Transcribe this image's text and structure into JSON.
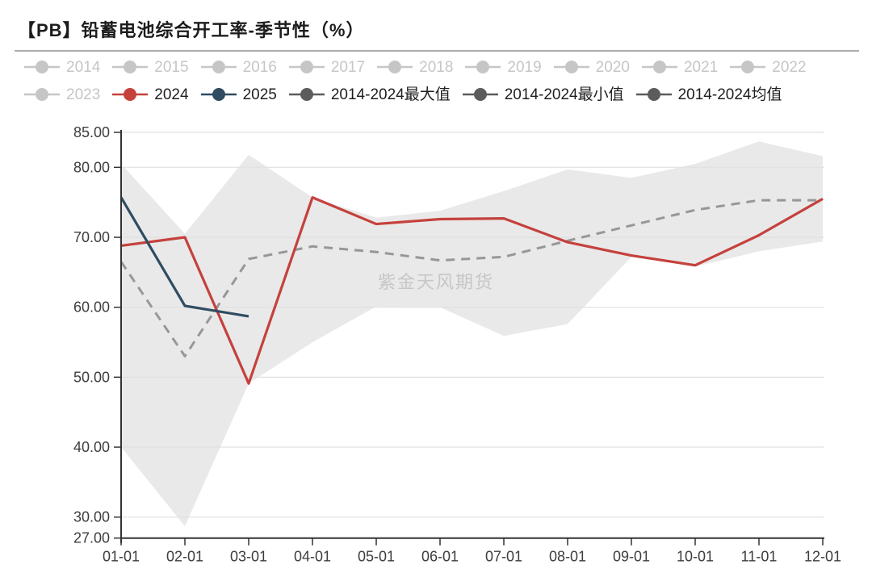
{
  "title": "【PB】铅蓄电池综合开工率-季节性（%）",
  "watermark": "紫金天风期货",
  "colors": {
    "red": "#c5413c",
    "navy": "#2f4c61",
    "year_gray": "#c6c6c6",
    "stat_gray": "#5c5c5c",
    "mean_dash": "#979797",
    "band_fill": "#e9e9e9",
    "grid": "#e0e0e0",
    "axis": "#333333",
    "tick_label": "#3d3d3d",
    "watermark_gray": "#c6c6c6",
    "separator": "#adadad",
    "legend_text_dark": "#1f1f1f"
  },
  "legend": {
    "rows": [
      [
        {
          "label": "2014",
          "color": "#c6c6c6",
          "text_color": "#c6c6c6"
        },
        {
          "label": "2015",
          "color": "#c6c6c6",
          "text_color": "#c6c6c6"
        },
        {
          "label": "2016",
          "color": "#c6c6c6",
          "text_color": "#c6c6c6"
        },
        {
          "label": "2017",
          "color": "#c6c6c6",
          "text_color": "#c6c6c6"
        },
        {
          "label": "2018",
          "color": "#c6c6c6",
          "text_color": "#c6c6c6"
        },
        {
          "label": "2019",
          "color": "#c6c6c6",
          "text_color": "#c6c6c6"
        },
        {
          "label": "2020",
          "color": "#c6c6c6",
          "text_color": "#c6c6c6"
        },
        {
          "label": "2021",
          "color": "#c6c6c6",
          "text_color": "#c6c6c6"
        },
        {
          "label": "2022",
          "color": "#c6c6c6",
          "text_color": "#c6c6c6"
        }
      ],
      [
        {
          "label": "2023",
          "color": "#c6c6c6",
          "text_color": "#c6c6c6"
        },
        {
          "label": "2024",
          "color": "#c5413c",
          "text_color": "#1f1f1f"
        },
        {
          "label": "2025",
          "color": "#2f4c61",
          "text_color": "#1f1f1f"
        },
        {
          "label": "2014-2024最大值",
          "color": "#5c5c5c",
          "text_color": "#1f1f1f"
        },
        {
          "label": "2014-2024最小值",
          "color": "#5c5c5c",
          "text_color": "#1f1f1f"
        },
        {
          "label": "2014-2024均值",
          "color": "#5c5c5c",
          "text_color": "#1f1f1f"
        }
      ]
    ]
  },
  "chart_data": {
    "type": "line",
    "title": "【PB】铅蓄电池综合开工率-季节性（%）",
    "legend_position": "top",
    "grid": true,
    "x_categories": [
      "01-01",
      "02-01",
      "03-01",
      "04-01",
      "05-01",
      "06-01",
      "07-01",
      "08-01",
      "09-01",
      "10-01",
      "11-01",
      "12-01"
    ],
    "ylim": [
      27,
      85
    ],
    "y_ticks": [
      {
        "label": "85.00",
        "value": 85,
        "gridline": true
      },
      {
        "label": "80.00",
        "value": 80,
        "gridline": true
      },
      {
        "label": "70.00",
        "value": 70,
        "gridline": true
      },
      {
        "label": "60.00",
        "value": 60,
        "gridline": true
      },
      {
        "label": "50.00",
        "value": 50,
        "gridline": true
      },
      {
        "label": "40.00",
        "value": 40,
        "gridline": true
      },
      {
        "label": "30.00",
        "value": 30,
        "gridline": true
      },
      {
        "label": "27.00",
        "value": 27,
        "gridline": false
      }
    ],
    "band": {
      "max_name": "2014-2024最大值",
      "min_name": "2014-2024最小值",
      "fill": "#e9e9e9",
      "max": [
        80.5,
        70.5,
        81.8,
        75.7,
        72.8,
        73.8,
        76.6,
        79.7,
        78.5,
        80.5,
        83.7,
        81.6
      ],
      "min": [
        40.0,
        28.7,
        49.1,
        55.0,
        60.1,
        60.0,
        55.9,
        57.6,
        67.2,
        65.8,
        68.0,
        69.4
      ]
    },
    "series": [
      {
        "name": "2014-2024均值",
        "style": "dashed",
        "color": "#979797",
        "values": [
          66.5,
          53.0,
          66.9,
          68.7,
          67.9,
          66.7,
          67.2,
          69.5,
          71.7,
          73.9,
          75.3,
          75.3
        ]
      },
      {
        "name": "2024",
        "style": "solid",
        "color": "#c5413c",
        "values": [
          68.8,
          70.0,
          49.1,
          75.7,
          71.9,
          72.6,
          72.7,
          69.3,
          67.4,
          66.0,
          70.3,
          75.5
        ]
      },
      {
        "name": "2025",
        "style": "solid",
        "color": "#2f4c61",
        "values": [
          75.7,
          60.2,
          58.7
        ]
      }
    ]
  }
}
